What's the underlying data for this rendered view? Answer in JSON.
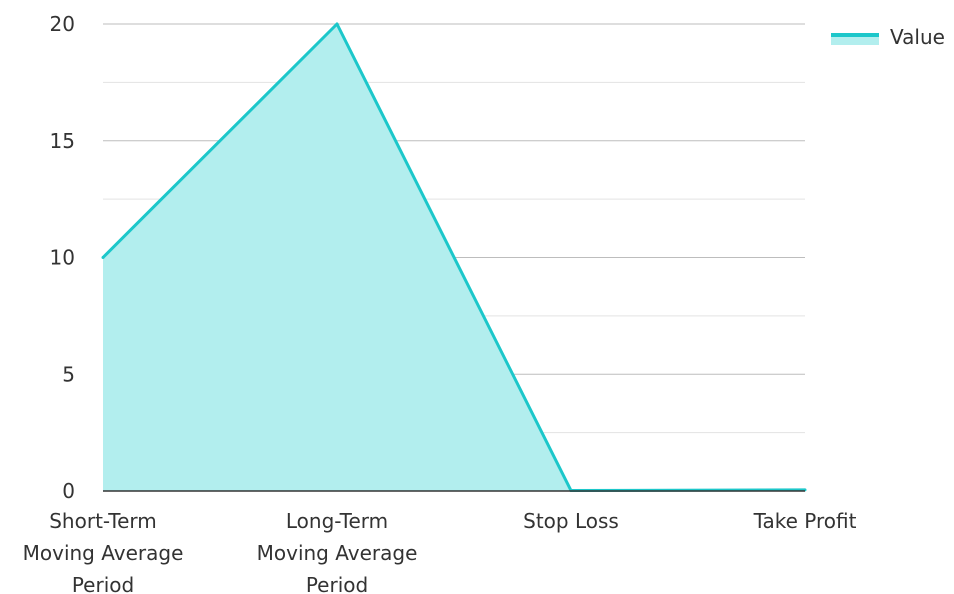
{
  "chart_data": {
    "type": "area",
    "categories": [
      "Short-Term Moving Average Period",
      "Long-Term Moving Average Period",
      "Stop Loss",
      "Take Profit"
    ],
    "category_label_lines": [
      [
        "Short-Term",
        "Moving Average",
        "Period"
      ],
      [
        "Long-Term",
        "Moving Average",
        "Period"
      ],
      [
        "Stop Loss"
      ],
      [
        "Take Profit"
      ]
    ],
    "series": [
      {
        "name": "Value",
        "values": [
          10,
          20,
          0.02,
          0.05
        ],
        "line_color": "#1CC7CA",
        "fill_color": "#B2EEEE"
      }
    ],
    "y_ticks": [
      0,
      5,
      10,
      15,
      20
    ],
    "ylim": [
      0,
      20
    ],
    "grid": true,
    "legend_position": "top-right",
    "title": "",
    "xlabel": "",
    "ylabel": ""
  }
}
